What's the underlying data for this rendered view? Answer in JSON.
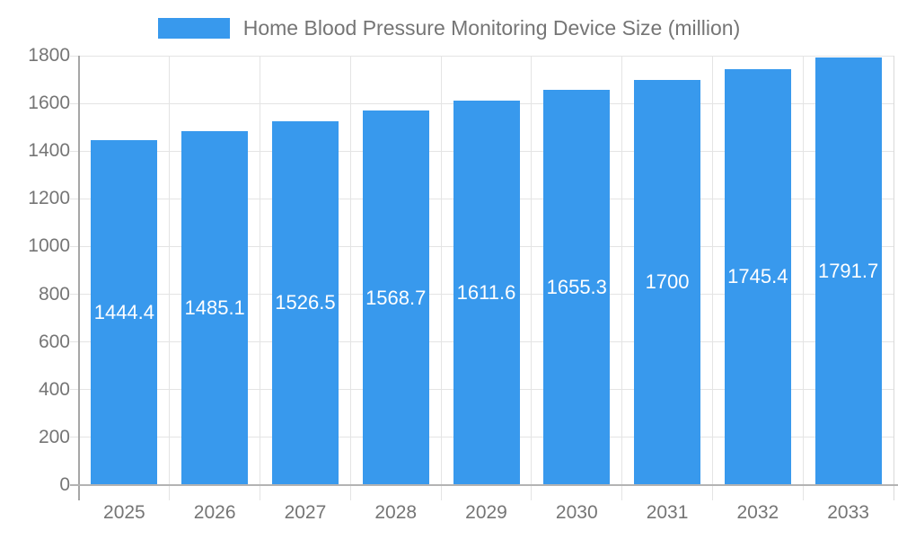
{
  "chart_data": {
    "type": "bar",
    "title": "Home Blood Pressure Monitoring Device Size (million)",
    "categories": [
      "2025",
      "2026",
      "2027",
      "2028",
      "2029",
      "2030",
      "2031",
      "2032",
      "2033"
    ],
    "values": [
      1444.4,
      1485.1,
      1526.5,
      1568.7,
      1611.6,
      1655.3,
      1700,
      1745.4,
      1791.7
    ],
    "bar_labels": [
      "1444.4",
      "1485.1",
      "1526.5",
      "1568.7",
      "1611.6",
      "1655.3",
      "1700",
      "1745.4",
      "1791.7"
    ],
    "xlabel": "",
    "ylabel": "",
    "ylim": [
      0,
      1800
    ],
    "yticks": [
      0,
      200,
      400,
      600,
      800,
      1000,
      1200,
      1400,
      1600,
      1800
    ],
    "grid": "both",
    "legend_position": "top",
    "bar_label_position": "center-inside",
    "colors": {
      "bar": "#3899ED",
      "bar_label": "#FFFFFF",
      "axis_text": "#757575",
      "grid_line": "#E4E4E4",
      "tick_line": "#D9D9D9",
      "x_axis_line": "#B3B3B3",
      "y_axis_line": "#A6A6A6",
      "background": "#FFFFFF"
    }
  }
}
